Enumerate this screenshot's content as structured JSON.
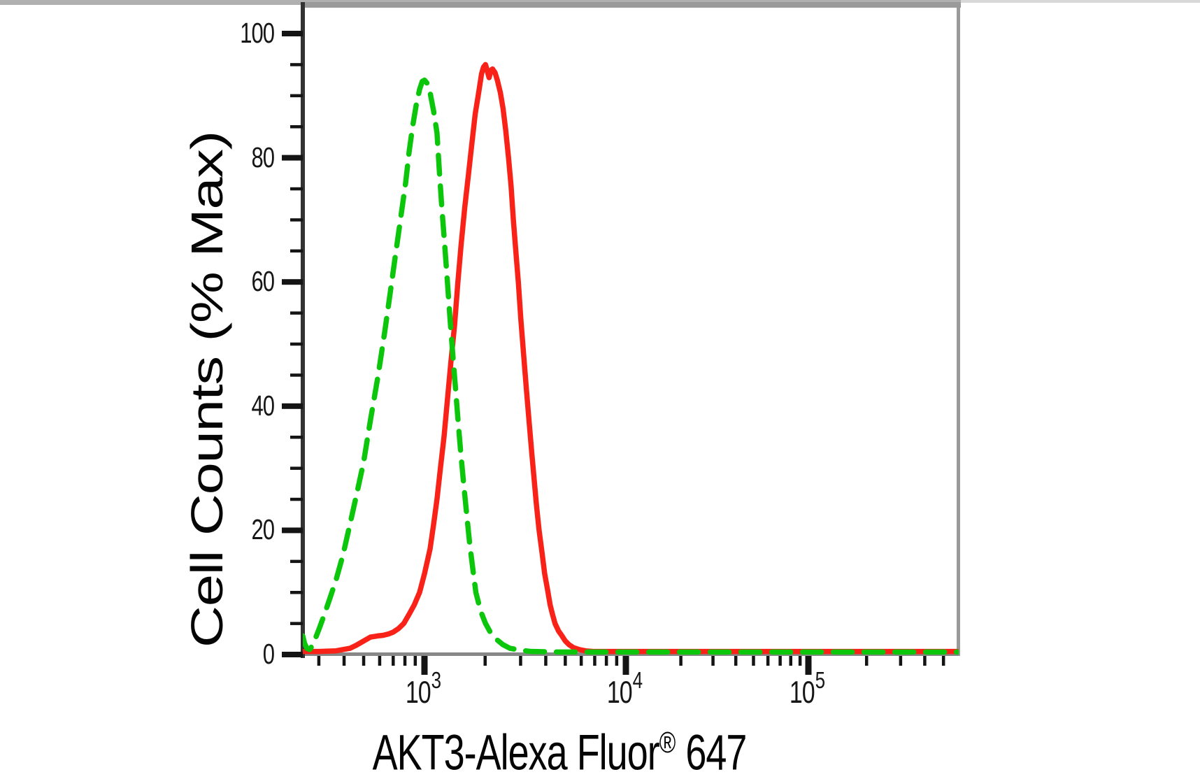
{
  "figure": {
    "background": "#ffffff",
    "top_strip_color": "#b0b0b0",
    "top_strip_right_color": "#d8d8d8"
  },
  "style": {
    "frame_border_color": "#9a9a9a",
    "y_axis_line_color": "#333333",
    "x_baseline_color": "#878787",
    "tick_color": "#141414",
    "label_color": "#0a0a0a"
  },
  "chart_data": {
    "type": "line",
    "title": "",
    "ylabel": "Cell Counts (% Max)",
    "xlabel_parts": {
      "main": "AKT3-Alexa Fluor",
      "registered": "®",
      "suffix": " 647"
    },
    "grid": false,
    "legend": "none",
    "x_axis": {
      "scale": "log",
      "min": 250,
      "max": 600000,
      "major_ticks": [
        {
          "value": 1000,
          "base": "10",
          "exp": "3"
        },
        {
          "value": 10000,
          "base": "10",
          "exp": "4"
        },
        {
          "value": 100000,
          "base": "10",
          "exp": "5"
        }
      ],
      "minor_multiples": [
        2,
        3,
        4,
        5,
        6,
        7,
        8,
        9
      ]
    },
    "y_axis": {
      "min": 0,
      "max": 100,
      "major_step": 20,
      "minor_step": 5,
      "major_tick_labels": [
        "0",
        "20",
        "40",
        "60",
        "80",
        "100"
      ]
    },
    "series": [
      {
        "id": "red-solid",
        "line_style": "solid",
        "color": "#f92218",
        "peak": {
          "x": 2000,
          "y": 95
        },
        "points": [
          [
            250,
            0.5
          ],
          [
            300,
            0.5
          ],
          [
            365,
            0.6
          ],
          [
            428,
            1
          ],
          [
            460,
            1.5
          ],
          [
            501,
            2.2
          ],
          [
            540,
            2.8
          ],
          [
            587,
            3
          ],
          [
            625,
            3.1
          ],
          [
            662,
            3.3
          ],
          [
            700,
            3.6
          ],
          [
            745,
            4.2
          ],
          [
            790,
            5
          ],
          [
            840,
            6.5
          ],
          [
            890,
            8
          ],
          [
            946,
            10
          ],
          [
            1000,
            13
          ],
          [
            1066,
            17
          ],
          [
            1110,
            21
          ],
          [
            1154,
            25
          ],
          [
            1200,
            30
          ],
          [
            1250,
            35
          ],
          [
            1300,
            41
          ],
          [
            1352,
            47
          ],
          [
            1410,
            53
          ],
          [
            1465,
            60
          ],
          [
            1520,
            66
          ],
          [
            1585,
            72
          ],
          [
            1650,
            77
          ],
          [
            1715,
            82
          ],
          [
            1785,
            87
          ],
          [
            1858,
            90.5
          ],
          [
            1920,
            93.5
          ],
          [
            1963,
            94.6
          ],
          [
            2010,
            95
          ],
          [
            2050,
            94
          ],
          [
            2094,
            92.9
          ],
          [
            2140,
            94.1
          ],
          [
            2177,
            94.3
          ],
          [
            2240,
            93.7
          ],
          [
            2301,
            92.5
          ],
          [
            2380,
            90.5
          ],
          [
            2455,
            88
          ],
          [
            2530,
            84.5
          ],
          [
            2614,
            80
          ],
          [
            2690,
            75.5
          ],
          [
            2762,
            70
          ],
          [
            2840,
            65
          ],
          [
            2924,
            60
          ],
          [
            3010,
            54
          ],
          [
            3112,
            48
          ],
          [
            3210,
            42.5
          ],
          [
            3318,
            37
          ],
          [
            3410,
            32.5
          ],
          [
            3508,
            28
          ],
          [
            3600,
            24
          ],
          [
            3707,
            20
          ],
          [
            3830,
            16.5
          ],
          [
            3951,
            13
          ],
          [
            4080,
            10.5
          ],
          [
            4207,
            8
          ],
          [
            4320,
            6.5
          ],
          [
            4449,
            5
          ],
          [
            4630,
            3.8
          ],
          [
            4819,
            3
          ],
          [
            5000,
            2.2
          ],
          [
            5212,
            1.6
          ],
          [
            5500,
            1.1
          ],
          [
            5874,
            0.8
          ],
          [
            6300,
            0.6
          ],
          [
            6880,
            0.5
          ],
          [
            8000,
            0.5
          ],
          [
            10000,
            0.5
          ],
          [
            20000,
            0.5
          ],
          [
            50000,
            0.5
          ],
          [
            100000,
            0.5
          ],
          [
            200000,
            0.5
          ],
          [
            400000,
            0.5
          ],
          [
            590000,
            0.5
          ]
        ]
      },
      {
        "id": "green-dashed",
        "line_style": "dashed",
        "color": "#0cc60c",
        "peak": {
          "x": 1000,
          "y": 92.5
        },
        "points": [
          [
            250,
            3
          ],
          [
            255,
            1.8
          ],
          [
            262,
            1
          ],
          [
            270,
            0.8
          ],
          [
            280,
            1.5
          ],
          [
            300,
            4
          ],
          [
            320,
            6.5
          ],
          [
            340,
            9
          ],
          [
            365,
            12
          ],
          [
            395,
            16
          ],
          [
            428,
            21
          ],
          [
            463,
            26
          ],
          [
            500,
            31
          ],
          [
            542,
            38
          ],
          [
            590,
            45
          ],
          [
            636,
            52
          ],
          [
            675,
            58
          ],
          [
            716,
            64
          ],
          [
            760,
            70
          ],
          [
            807,
            76
          ],
          [
            840,
            81
          ],
          [
            873,
            85
          ],
          [
            910,
            88.5
          ],
          [
            946,
            91
          ],
          [
            975,
            92.3
          ],
          [
            1000,
            92.5
          ],
          [
            1030,
            92
          ],
          [
            1066,
            90.5
          ],
          [
            1110,
            87.5
          ],
          [
            1154,
            84
          ],
          [
            1185,
            78
          ],
          [
            1219,
            72
          ],
          [
            1260,
            66
          ],
          [
            1300,
            60
          ],
          [
            1340,
            54
          ],
          [
            1385,
            48
          ],
          [
            1425,
            43
          ],
          [
            1465,
            38
          ],
          [
            1510,
            33
          ],
          [
            1560,
            28
          ],
          [
            1615,
            23
          ],
          [
            1675,
            18
          ],
          [
            1735,
            14
          ],
          [
            1800,
            10
          ],
          [
            1900,
            7
          ],
          [
            2010,
            5
          ],
          [
            2130,
            3.5
          ],
          [
            2265,
            2.5
          ],
          [
            2450,
            1.6
          ],
          [
            2655,
            1
          ],
          [
            3000,
            0.7
          ],
          [
            3370,
            0.5
          ],
          [
            4000,
            0.45
          ],
          [
            4630,
            0.4
          ],
          [
            6000,
            0.4
          ],
          [
            10000,
            0.4
          ],
          [
            20000,
            0.4
          ],
          [
            50000,
            0.4
          ],
          [
            100000,
            0.4
          ],
          [
            200000,
            0.4
          ],
          [
            400000,
            0.4
          ],
          [
            590000,
            0.4
          ]
        ]
      }
    ]
  }
}
